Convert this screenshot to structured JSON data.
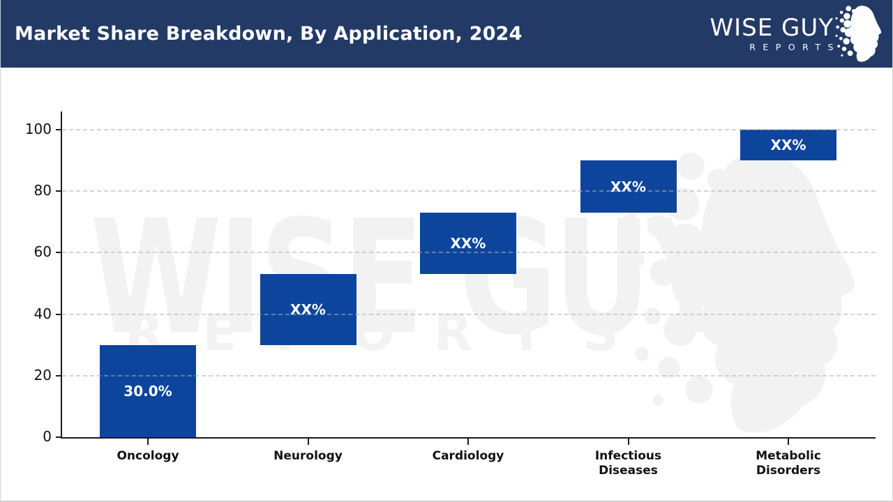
{
  "header": {
    "title": "Market Share Breakdown, By Application, 2024",
    "bg_color": "#233a66",
    "logo": {
      "line1": "WISE GUY",
      "line2": "REPORTS"
    }
  },
  "watermark": {
    "line1": "WISE GUY",
    "line2": "REPORTS"
  },
  "chart_data": {
    "type": "bar",
    "variant": "waterfall",
    "title": "Market Share Breakdown, By Application, 2024",
    "categories": [
      "Oncology",
      "Neurology",
      "Cardiology",
      "Infectious Diseases",
      "Metabolic Disorders"
    ],
    "segments": [
      {
        "category": "Oncology",
        "start": 0,
        "end": 30,
        "value": 30.0,
        "label": "30.0%"
      },
      {
        "category": "Neurology",
        "start": 30,
        "end": 53,
        "value": 23.0,
        "label": "XX%"
      },
      {
        "category": "Cardiology",
        "start": 53,
        "end": 73,
        "value": 20.0,
        "label": "XX%"
      },
      {
        "category": "Infectious Diseases",
        "start": 73,
        "end": 90,
        "value": 17.0,
        "label": "XX%"
      },
      {
        "category": "Metabolic Disorders",
        "start": 90,
        "end": 100,
        "value": 10.0,
        "label": "XX%"
      }
    ],
    "xlabel": "",
    "ylabel": "",
    "yticks": [
      0,
      20,
      40,
      60,
      80,
      100
    ],
    "ylim": [
      0,
      105
    ],
    "grid": "horizontal-dashed",
    "legend": "none",
    "bar_color": "#0d459c",
    "bar_label_color": "#ffffff",
    "axis_color": "#1a1a1a",
    "gridline_color": "#d8d8d8"
  }
}
